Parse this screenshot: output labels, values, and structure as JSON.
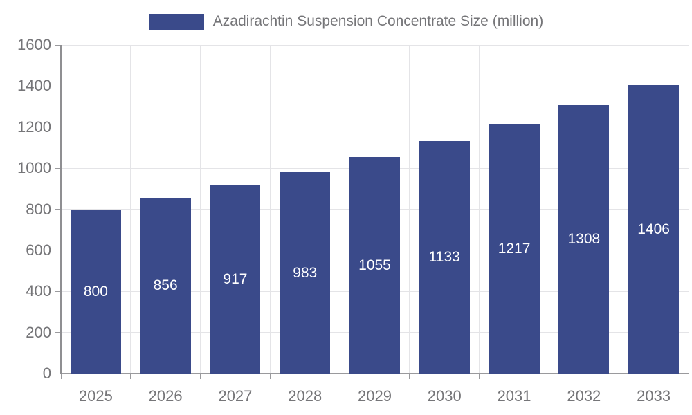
{
  "legend": {
    "label": "Azadirachtin Suspension Concentrate Size (million)",
    "swatch_color": "#3a4a8a"
  },
  "chart_data": {
    "type": "bar",
    "title": "Azadirachtin Suspension Concentrate Size (million)",
    "categories": [
      "2025",
      "2026",
      "2027",
      "2028",
      "2029",
      "2030",
      "2031",
      "2032",
      "2033"
    ],
    "values": [
      800,
      856,
      917,
      983,
      1055,
      1133,
      1217,
      1308,
      1406
    ],
    "xlabel": "",
    "ylabel": "",
    "ylim": [
      0,
      1600
    ],
    "yticks": [
      0,
      200,
      400,
      600,
      800,
      1000,
      1200,
      1400,
      1600
    ],
    "grid": true,
    "legend_position": "top",
    "bar_color": "#3a4a8a",
    "value_label_color": "#ffffff",
    "axis_text_color": "#757578",
    "gridline_color": "#e4e4e7",
    "axis_line_color": "#9a9a9d"
  }
}
